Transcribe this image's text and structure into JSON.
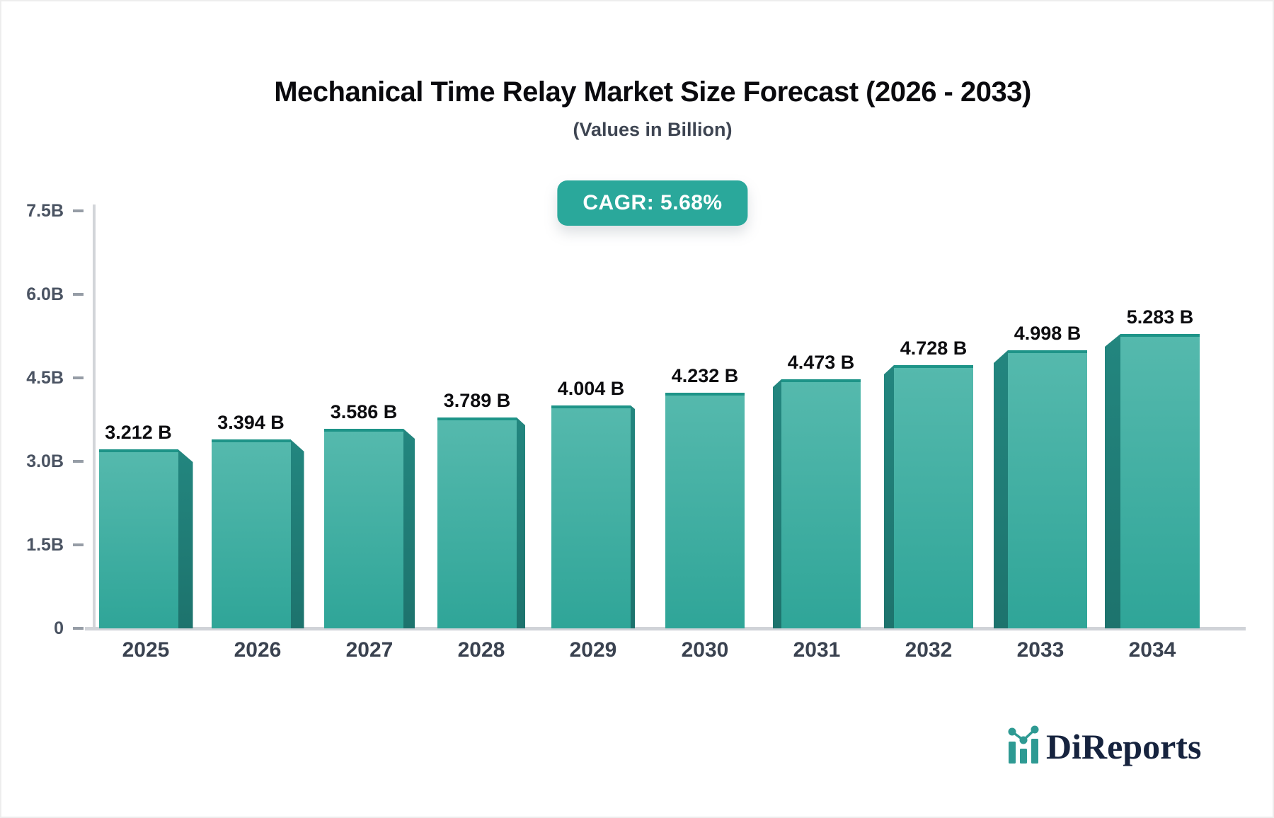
{
  "header": {
    "title": "Mechanical Time Relay Market Size Forecast (2026 - 2033)",
    "subtitle": "(Values in Billion)",
    "cagr_badge": "CAGR: 5.68%"
  },
  "chart_data": {
    "type": "bar",
    "title": "Mechanical Time Relay Market Size Forecast (2026 - 2033)",
    "subtitle": "(Values in Billion)",
    "unit": "Billion",
    "cagr_percent": 5.68,
    "categories": [
      "2025",
      "2026",
      "2027",
      "2028",
      "2029",
      "2030",
      "2031",
      "2032",
      "2033",
      "2034"
    ],
    "values": [
      3.212,
      3.394,
      3.586,
      3.789,
      4.004,
      4.232,
      4.473,
      4.728,
      4.998,
      5.283
    ],
    "bar_labels": [
      "3.212 B",
      "3.394 B",
      "3.586 B",
      "3.789 B",
      "4.004 B",
      "4.232 B",
      "4.473 B",
      "4.728 B",
      "4.998 B",
      "5.283 B"
    ],
    "xlabel": "",
    "ylabel": "",
    "ylim": [
      0,
      7.5
    ],
    "yticks": [
      {
        "value": 7.5,
        "label": "7.5B"
      },
      {
        "value": 6.0,
        "label": "6.0B"
      },
      {
        "value": 4.5,
        "label": "4.5B"
      },
      {
        "value": 3.0,
        "label": "3.0B"
      },
      {
        "value": 1.5,
        "label": "1.5B"
      },
      {
        "value": 0,
        "label": "0"
      }
    ],
    "grid": false,
    "legend": false,
    "bar_style": "3d-beveled"
  },
  "branding": {
    "logo_text": "DiReports"
  },
  "colors": {
    "bar_top": "#55b9ad",
    "bar_bottom": "#2fa598",
    "bar_side_top": "#23867f",
    "bar_side_bottom": "#1d736d",
    "bar_top_edge": "#1e9488",
    "badge_bg": "#2aa89b",
    "badge_text": "#ffffff",
    "axis": "#d2d5d9",
    "tick": "#969da6",
    "ytick_text": "#4a5362",
    "xtick_text": "#3a4250",
    "value_text": "#0d0d10",
    "title_text": "#0a0a0e",
    "subtitle_text": "#3e4552",
    "logo_navy": "#16233e",
    "logo_teal": "#2e9a93"
  }
}
